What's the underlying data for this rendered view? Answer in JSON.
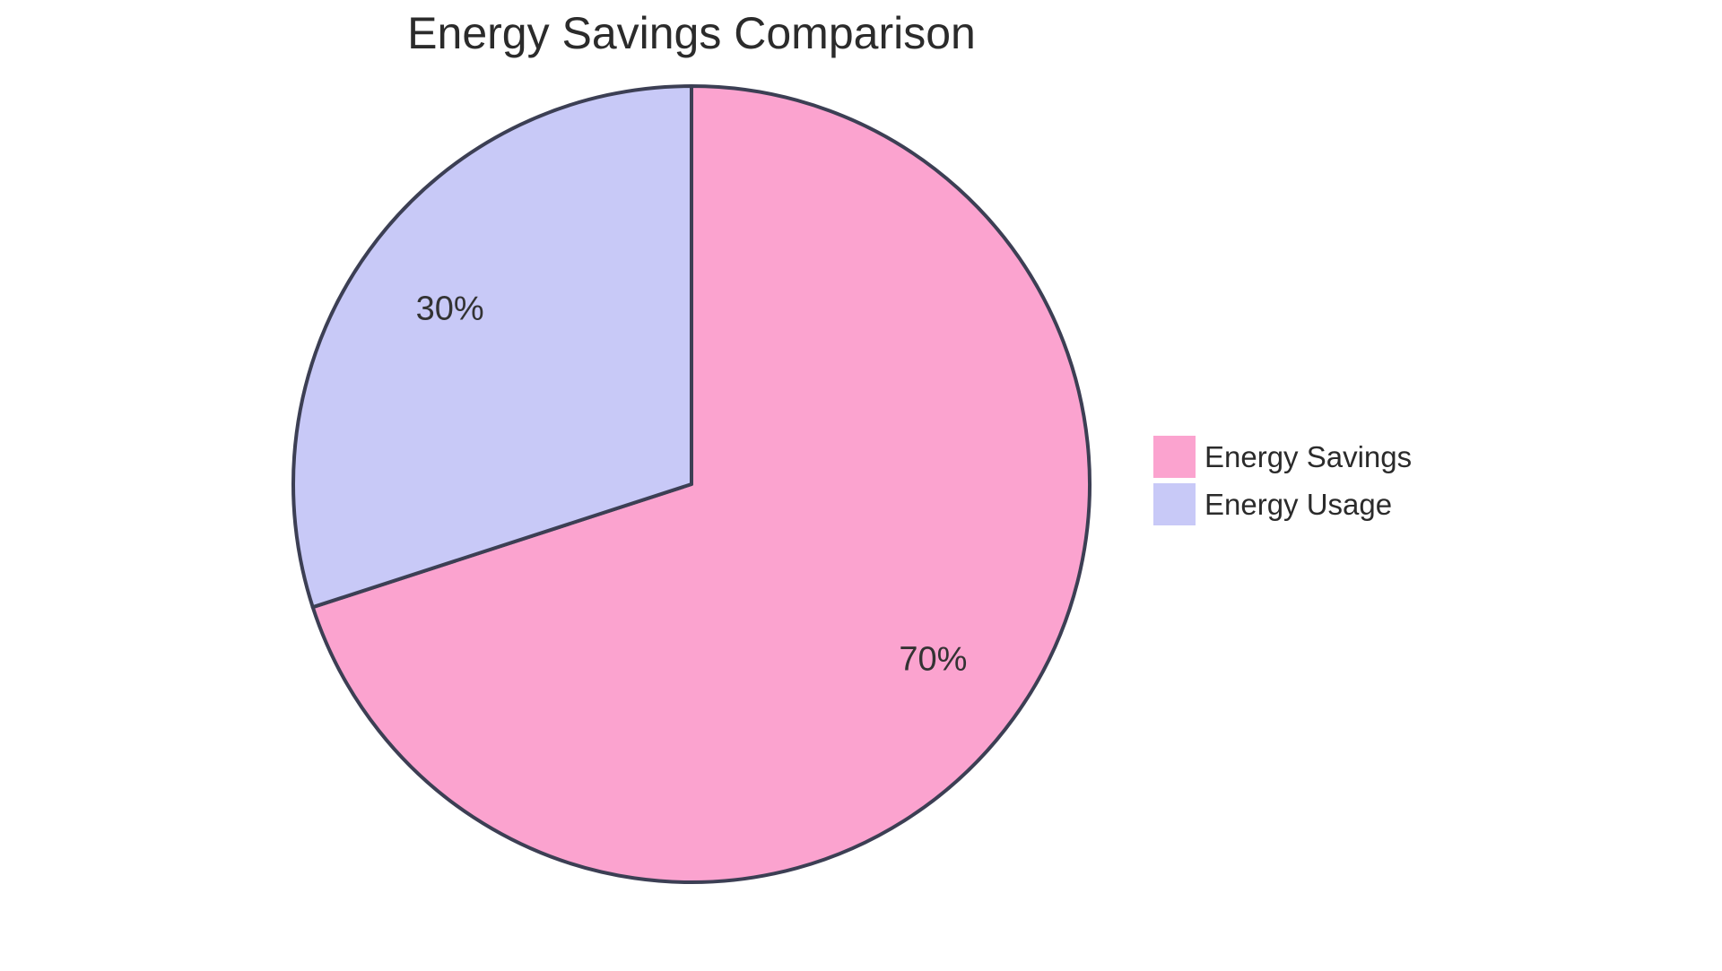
{
  "chart_data": {
    "type": "pie",
    "title": "Energy Savings Comparison",
    "slices": [
      {
        "label": "Energy Savings",
        "value": 70,
        "display": "70%",
        "color": "#FBA3CF"
      },
      {
        "label": "Energy Usage",
        "value": 30,
        "display": "30%",
        "color": "#C8C9F7"
      }
    ],
    "outline_color": "#3C3F54",
    "outline_width": 4,
    "slice_label_color": "#333333",
    "title_color": "#2B2B2B",
    "start_angle_deg": 0,
    "direction": "clockwise",
    "legend": {
      "position": "right"
    },
    "background_color": "#FFFFFF"
  }
}
